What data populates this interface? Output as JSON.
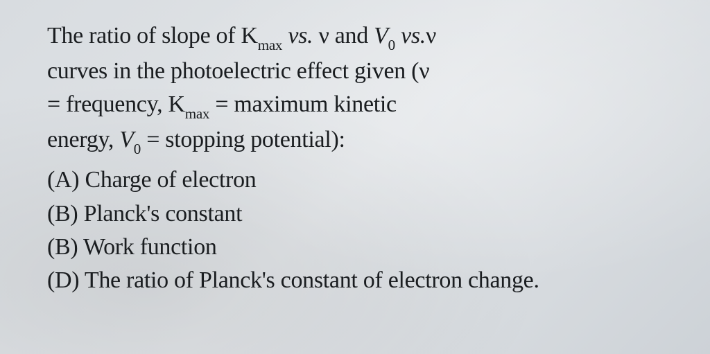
{
  "question": {
    "line1_pre": "The ratio of slope of K",
    "line1_sub1": "max",
    "line1_mid1": " ",
    "line1_vs1": "vs.",
    "line1_mid2": " ν and ",
    "line1_v0_v": "V",
    "line1_v0_sub": "0",
    "line1_mid3": " ",
    "line1_vs2": "vs.",
    "line1_end": "ν",
    "line2": "curves in the photoelectric effect given (ν",
    "line3_pre": "= frequency, K",
    "line3_sub": "max",
    "line3_post": " = maximum kinetic",
    "line4_pre": "energy, ",
    "line4_v0_v": "V",
    "line4_v0_sub": "0",
    "line4_post": " = stopping potential):"
  },
  "options": {
    "a": "(A) Charge of electron",
    "b": "(B) Planck's constant",
    "c": "(B) Work function",
    "d": "(D) The ratio of Planck's constant of electron change."
  },
  "style": {
    "background_gradient_start": "#d8dce0",
    "background_gradient_end": "#cdd2d7",
    "text_color": "#1a1d20",
    "font_size_main": 34,
    "line_height": 1.42,
    "font_family": "Georgia, Times New Roman, serif"
  }
}
